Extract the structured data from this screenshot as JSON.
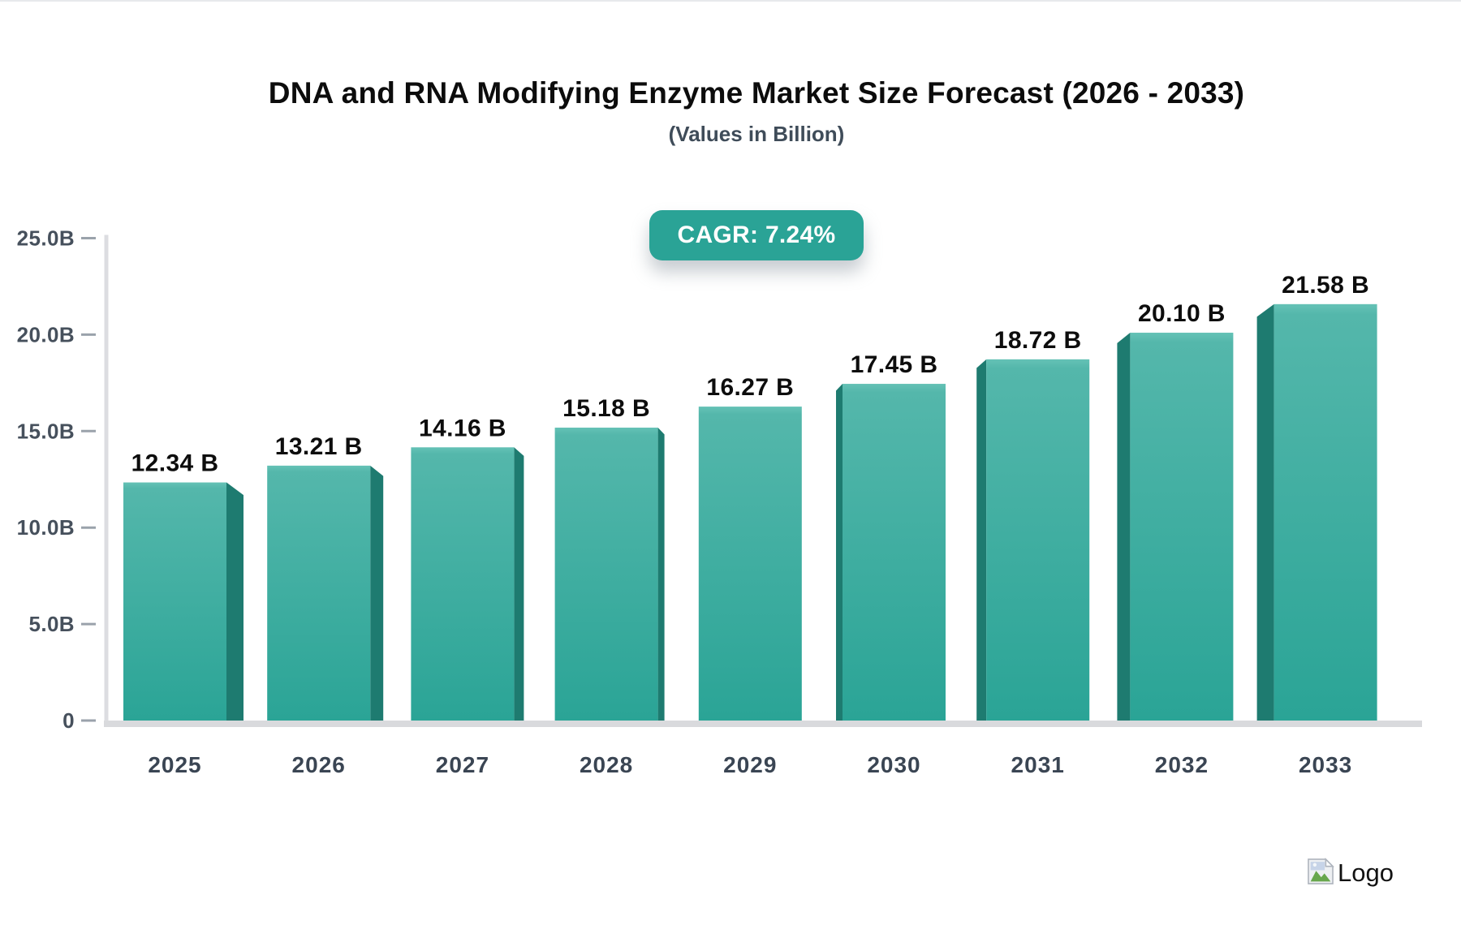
{
  "header": {
    "title": "DNA and RNA Modifying Enzyme Market Size Forecast (2026 - 2033)",
    "subtitle": "(Values in Billion)",
    "cagr_label": "CAGR: 7.24%"
  },
  "footer": {
    "logo_alt": "Logo"
  },
  "colors": {
    "accent_teal": "#2aa396",
    "bar_top": "#54b7ab",
    "bar_top_highlight": "#65c2b6",
    "bar_bottom": "#2aa496",
    "bar_side": "#1e7b70",
    "axis_line": "#dcdde1",
    "baseline": "#d9dadd",
    "tick": "#9aa2ab",
    "ytick_text": "#46505c",
    "xtick_text": "#3a4553",
    "bar_label_text": "#0d0d0d"
  },
  "chart_data": {
    "type": "bar",
    "title": "DNA and RNA Modifying Enzyme Market Size Forecast (2026 - 2033)",
    "subtitle": "(Values in Billion)",
    "annotation": "CAGR: 7.24%",
    "categories": [
      "2025",
      "2026",
      "2027",
      "2028",
      "2029",
      "2030",
      "2031",
      "2032",
      "2033"
    ],
    "values": [
      12.34,
      13.21,
      14.16,
      15.18,
      16.27,
      17.45,
      18.72,
      20.1,
      21.58
    ],
    "bar_labels": [
      "12.34 B",
      "13.21 B",
      "14.16 B",
      "15.18 B",
      "16.27 B",
      "17.45 B",
      "18.72 B",
      "20.10 B",
      "21.58 B"
    ],
    "unit": "Billion",
    "xlabel": "",
    "ylabel": "",
    "ylim": [
      0,
      25
    ],
    "yticks": [
      {
        "label": "25.0B",
        "value": 25.0
      },
      {
        "label": "20.0B",
        "value": 20.0
      },
      {
        "label": "15.0B",
        "value": 15.0
      },
      {
        "label": "10.0B",
        "value": 10.0
      },
      {
        "label": "5.0B",
        "value": 5.0
      },
      {
        "label": "0",
        "value": 0
      }
    ],
    "grid": false,
    "legend": "none",
    "style": "3d-perspective-columns"
  }
}
